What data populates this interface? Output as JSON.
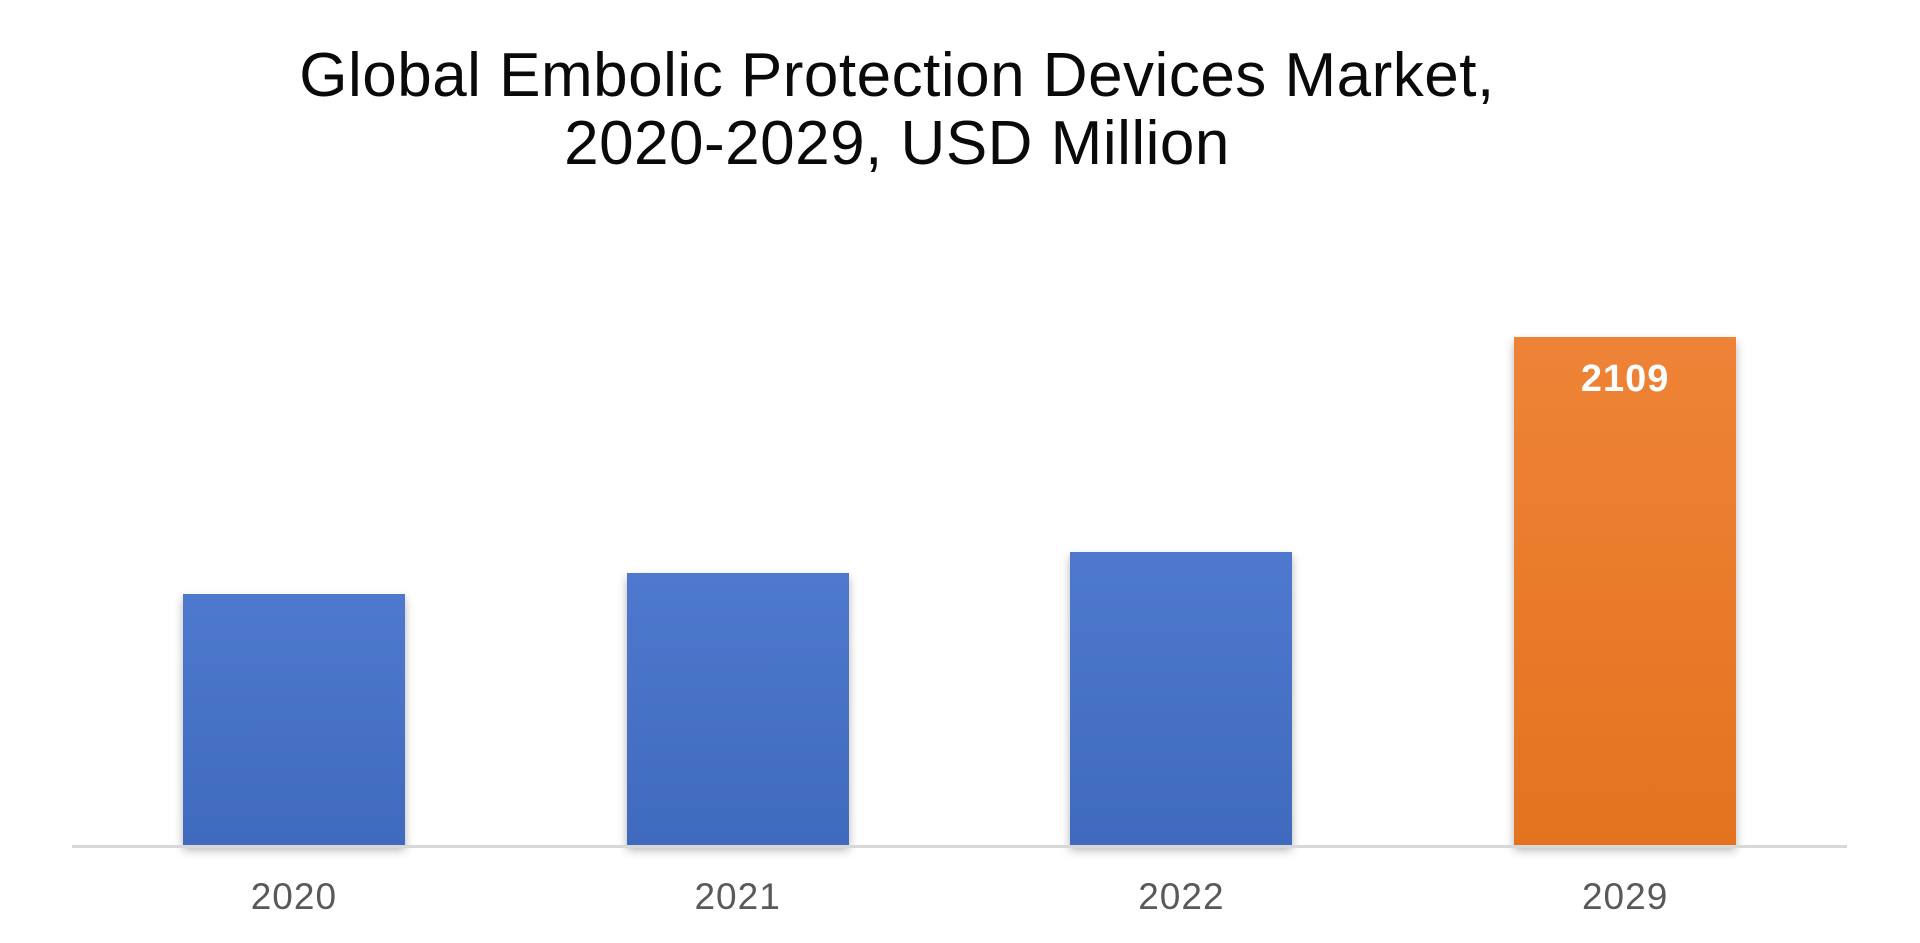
{
  "page": {
    "background": "#FFFFFF"
  },
  "chart_data": {
    "type": "bar",
    "title": "Global Embolic Protection Devices Market, 2020-2029, USD Million",
    "title_lines": [
      "Global Embolic Protection Devices Market,",
      "2020-2029, USD Million"
    ],
    "categories": [
      "2020",
      "2021",
      "2022",
      "2029"
    ],
    "values": [
      1040,
      1130,
      1215,
      2109
    ],
    "values_estimated": [
      true,
      true,
      true,
      false
    ],
    "displayed_value_labels": [
      "",
      "",
      "",
      "2109"
    ],
    "highlight_index": 3,
    "ylim": [
      0,
      2200
    ],
    "xlabel": "",
    "ylabel": "",
    "grid": false,
    "legend": false,
    "bar_colors": [
      "#4472C4",
      "#4472C4",
      "#4472C4",
      "#ED7D31"
    ],
    "colors": {
      "default_bar": "#4472C4",
      "highlight_bar": "#ED7D31",
      "axis_line": "#D8D8D8",
      "tick_label": "#595959",
      "value_label": "#FFFFFF",
      "title": "#0A0A0A",
      "background": "#FFFFFF"
    }
  }
}
